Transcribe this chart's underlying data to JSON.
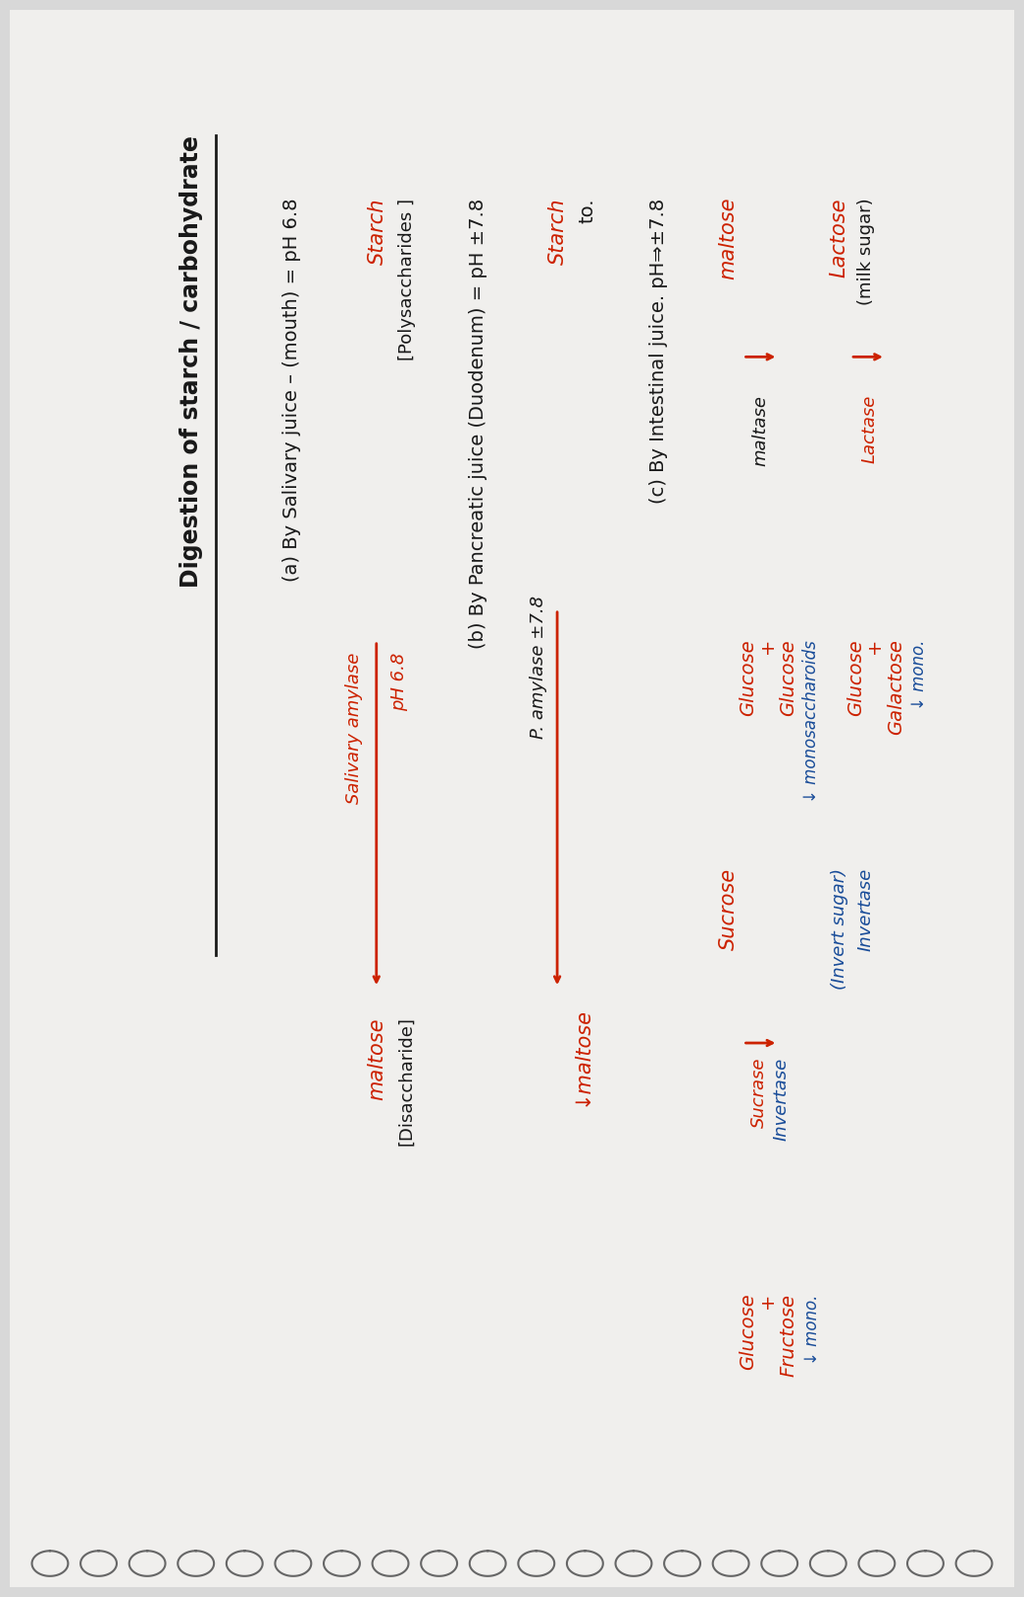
{
  "bg_color_top": "#2a1a0a",
  "bg_color_paper": "#e8e8e8",
  "paper_bg": "#f0f0f0",
  "title": "Digestion of starch / carbohydrate",
  "rotation": 90,
  "sections": {
    "a_header": "(a) By Salivary juice – (mouth) = pH 6.8",
    "a_starch": "Starch",
    "a_poly": "[Polysaccharides ]",
    "a_enzyme_top": "Salivary amylase",
    "a_enzyme_bot": "pH 6.8",
    "a_product": "maltose",
    "a_product2": "[Disaccharide]",
    "b_header": "(b) By Pancreatic juice (Duodenum) = pH ±7.8",
    "b_starch": "Starch",
    "b_to": "to.",
    "b_enzyme": "P. amylase ±7.8",
    "b_product": "maltose",
    "c_header": "(c) By Intestinal juice. pH⇒±7.8",
    "c_maltose": "maltose",
    "c_maltase": "maltase",
    "c_g1": "Glucose",
    "c_plus1": "+",
    "c_g2": "Glucose",
    "c_mono1": "↓ monosaccharoids",
    "c_lactose": "Lactose",
    "c_milk": "(milk sugar)",
    "c_lactase": "Lactase",
    "c_g3": "Glucose",
    "c_plus2": "+",
    "c_galactose": "Galactose",
    "c_mono2": "↓ mono.",
    "c_sucrose": "Sucrose",
    "c_sucrase": "Sucrase",
    "c_invertase1": "Invertase",
    "c_g4": "Glucose",
    "c_plus3": "+",
    "c_fructose": "Fructose",
    "c_mono3": "↓ mono.",
    "c_invert": "(Invert sugar)",
    "c_invertase2": "Invertase"
  },
  "colors": {
    "black": "#1a1a1a",
    "red": "#cc2200",
    "blue": "#1a4d99",
    "teal": "#009999",
    "orange": "#cc6600"
  }
}
